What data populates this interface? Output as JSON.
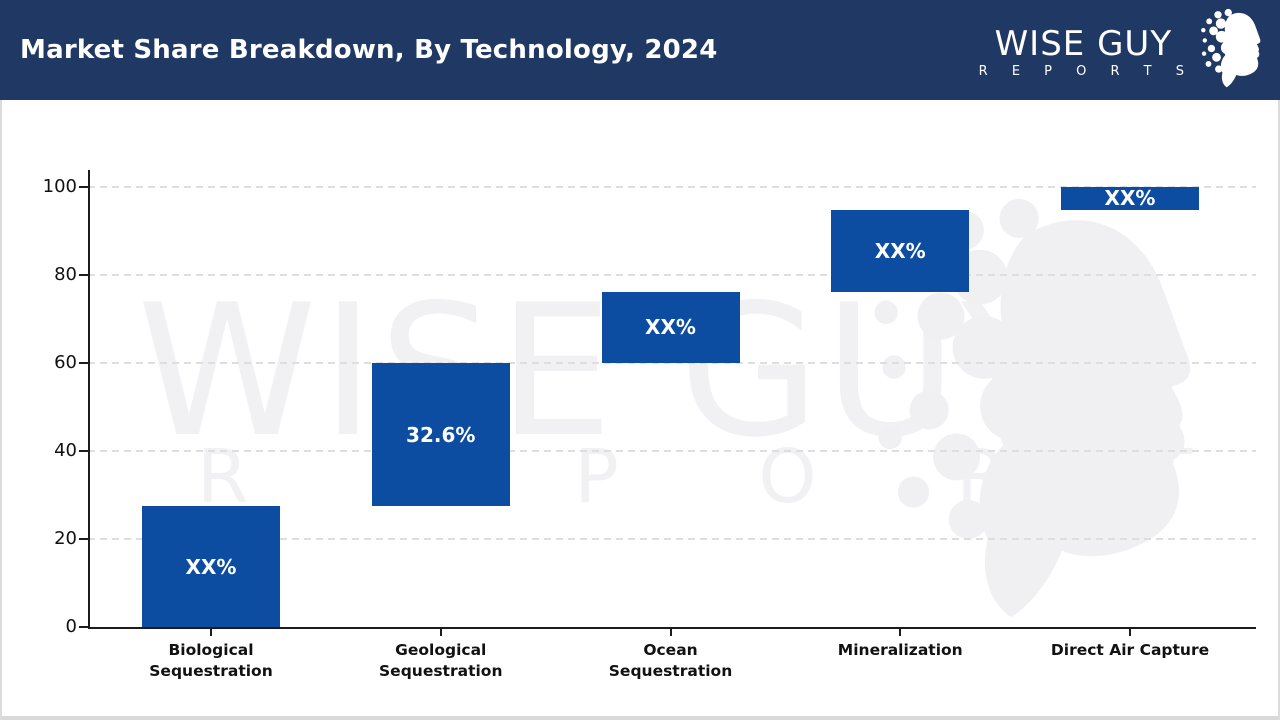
{
  "header": {
    "title": "Market Share Breakdown, By Technology, 2024",
    "background_color": "#203864",
    "brand": {
      "line1": "WISE GUY",
      "line2": "R E P O R T S"
    }
  },
  "watermark": {
    "line1": "WISE GUY",
    "line2": "R E P O R T S"
  },
  "chart_data": {
    "type": "bar",
    "variant": "floating-waterfall",
    "title": "Market Share Breakdown, By Technology, 2024",
    "categories": [
      "Biological Sequestration",
      "Geological Sequestration",
      "Ocean Sequestration",
      "Mineralization",
      "Direct Air Capture"
    ],
    "categories_lines": [
      [
        "Biological",
        "Sequestration"
      ],
      [
        "Geological",
        "Sequestration"
      ],
      [
        "Ocean",
        "Sequestration"
      ],
      [
        "Mineralization"
      ],
      [
        "Direct Air Capture"
      ]
    ],
    "segments": [
      {
        "label": "XX%",
        "start": 0,
        "end": 27.4
      },
      {
        "label": "32.6%",
        "start": 27.4,
        "end": 60.0
      },
      {
        "label": "XX%",
        "start": 60.0,
        "end": 76.2
      },
      {
        "label": "XX%",
        "start": 76.2,
        "end": 94.8
      },
      {
        "label": "XX%",
        "start": 94.8,
        "end": 100.0
      }
    ],
    "ylim": [
      0,
      100
    ],
    "yticks": [
      0,
      20,
      40,
      60,
      80,
      100
    ],
    "grid": "dashed-horizontal",
    "legend": "none",
    "bar_color": "#0d4da1",
    "bar_label_color": "#ffffff",
    "axis_color": "#1c1c1c"
  }
}
